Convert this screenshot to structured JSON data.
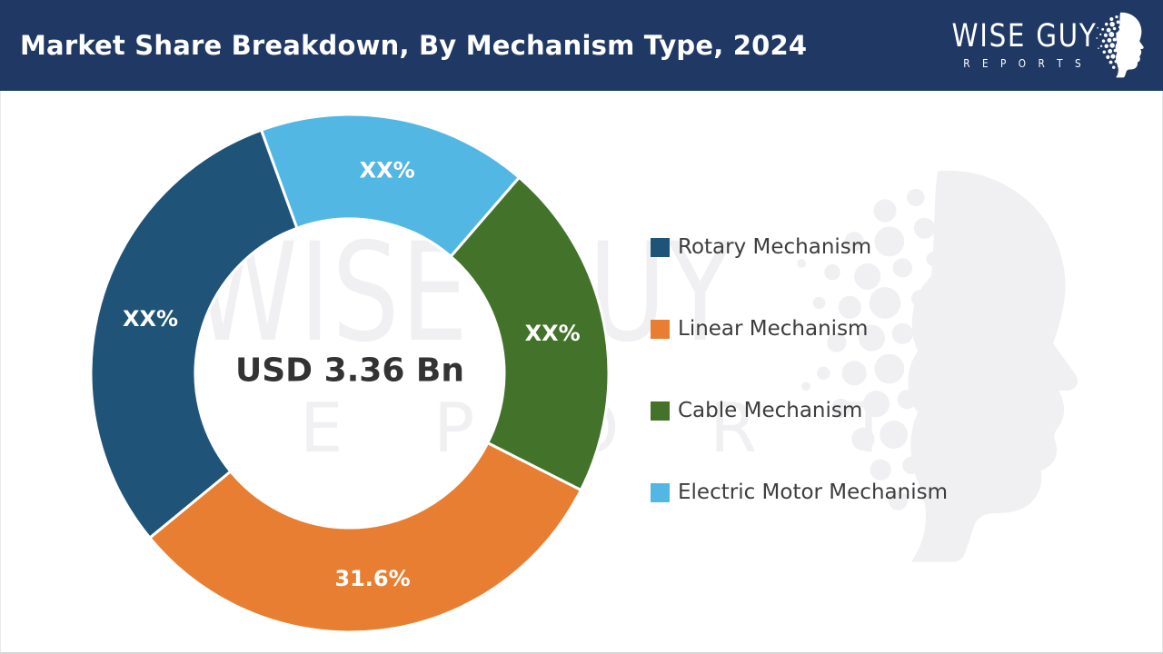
{
  "header": {
    "title": "Market Share Breakdown, By Mechanism Type, 2024",
    "logo": {
      "wordmark": "WISE GUY",
      "subtext": "R E P O R T S"
    }
  },
  "watermark": {
    "line1": "WISE GUY",
    "line2": "R E P O R T S"
  },
  "chart_data": {
    "type": "donut",
    "title": "Market Share Breakdown, By Mechanism Type, 2024",
    "center_label": "USD 3.36 Bn",
    "start_angle_deg": -20,
    "draw_order": [
      3,
      2,
      1,
      0
    ],
    "legend_position": "right",
    "segments": [
      {
        "name": "Rotary Mechanism",
        "value": 30.4,
        "label": "XX%",
        "color": "#1F5377"
      },
      {
        "name": "Linear Mechanism",
        "value": 31.6,
        "label": "31.6%",
        "color": "#E87E31"
      },
      {
        "name": "Cable Mechanism",
        "value": 21.1,
        "label": "XX%",
        "color": "#43732A"
      },
      {
        "name": "Electric Motor Mechanism",
        "value": 16.9,
        "label": "XX%",
        "color": "#53B7E3"
      }
    ]
  }
}
